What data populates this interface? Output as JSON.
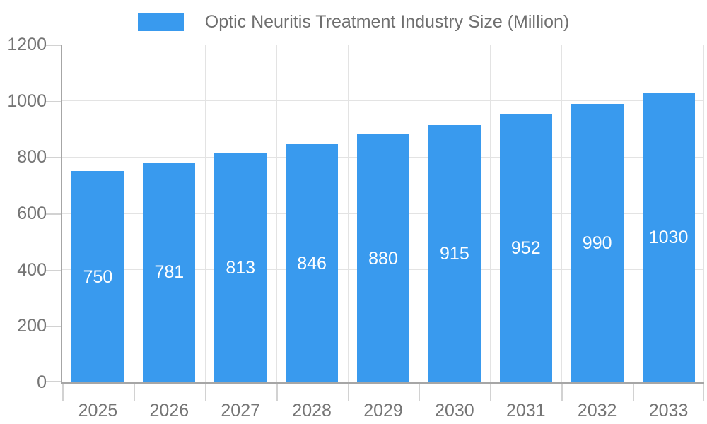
{
  "chart_data": {
    "type": "bar",
    "title": "Optic Neuritis Treatment Industry Size (Million)",
    "categories": [
      "2025",
      "2026",
      "2027",
      "2028",
      "2029",
      "2030",
      "2031",
      "2032",
      "2033"
    ],
    "values": [
      750,
      781,
      813,
      846,
      880,
      915,
      952,
      990,
      1030
    ],
    "series": [
      {
        "name": "Optic Neuritis Treatment Industry Size (Million)",
        "values": [
          750,
          781,
          813,
          846,
          880,
          915,
          952,
          990,
          1030
        ]
      }
    ],
    "xlabel": "",
    "ylabel": "",
    "ylim": [
      0,
      1200
    ],
    "yticks": [
      0,
      200,
      400,
      600,
      800,
      1000,
      1200
    ],
    "grid": "on",
    "legend_position": "top-center",
    "value_labels": "inside-center",
    "colors": {
      "bar": "#399AEE",
      "value_label": "#FFFFFF",
      "title_text": "#6F6F6F",
      "axis_text": "#757575",
      "grid_line": "#E3E3E3",
      "axis_line": "#A6A6A6",
      "tick_line": "#D2D2D2",
      "background": "#FFFFFF"
    }
  }
}
